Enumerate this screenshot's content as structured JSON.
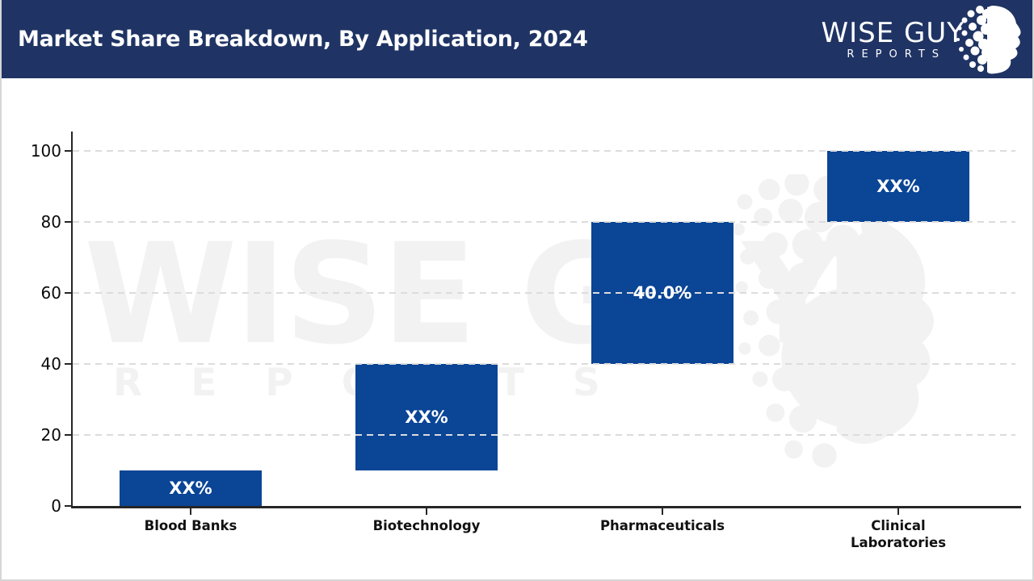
{
  "header": {
    "title": "Market Share Breakdown, By Application, 2024",
    "logo_line1": "WISE GUY",
    "logo_line2": "REPORTS"
  },
  "watermark": {
    "line1": "WISE GUY",
    "line2": "REPORTS"
  },
  "colors": {
    "header_bg": "#1f3464",
    "bar": "#0a4596",
    "grid": "#dcdcdc",
    "axis": "#262626",
    "watermark": "#f2f2f2",
    "title_text": "#ffffff"
  },
  "chart_data": {
    "type": "bar",
    "subtype": "floating-waterfall",
    "title": "Market Share Breakdown, By Application, 2024",
    "categories": [
      "Blood Banks",
      "Biotechnology",
      "Pharmaceuticals",
      "Clinical Laboratories"
    ],
    "segments": [
      {
        "category": "Blood Banks",
        "start": 0,
        "end": 10,
        "label": "XX%"
      },
      {
        "category": "Biotechnology",
        "start": 10,
        "end": 40,
        "label": "XX%"
      },
      {
        "category": "Pharmaceuticals",
        "start": 40,
        "end": 80,
        "label": "40.0%"
      },
      {
        "category": "Clinical Laboratories",
        "start": 80,
        "end": 100,
        "label": "XX%"
      }
    ],
    "ylim": [
      0,
      100
    ],
    "yticks": [
      0,
      20,
      40,
      60,
      80,
      100
    ],
    "xlabel": "",
    "ylabel": "",
    "grid": "horizontal-dashed",
    "legend": "none",
    "bar_color": "#0a4596"
  }
}
